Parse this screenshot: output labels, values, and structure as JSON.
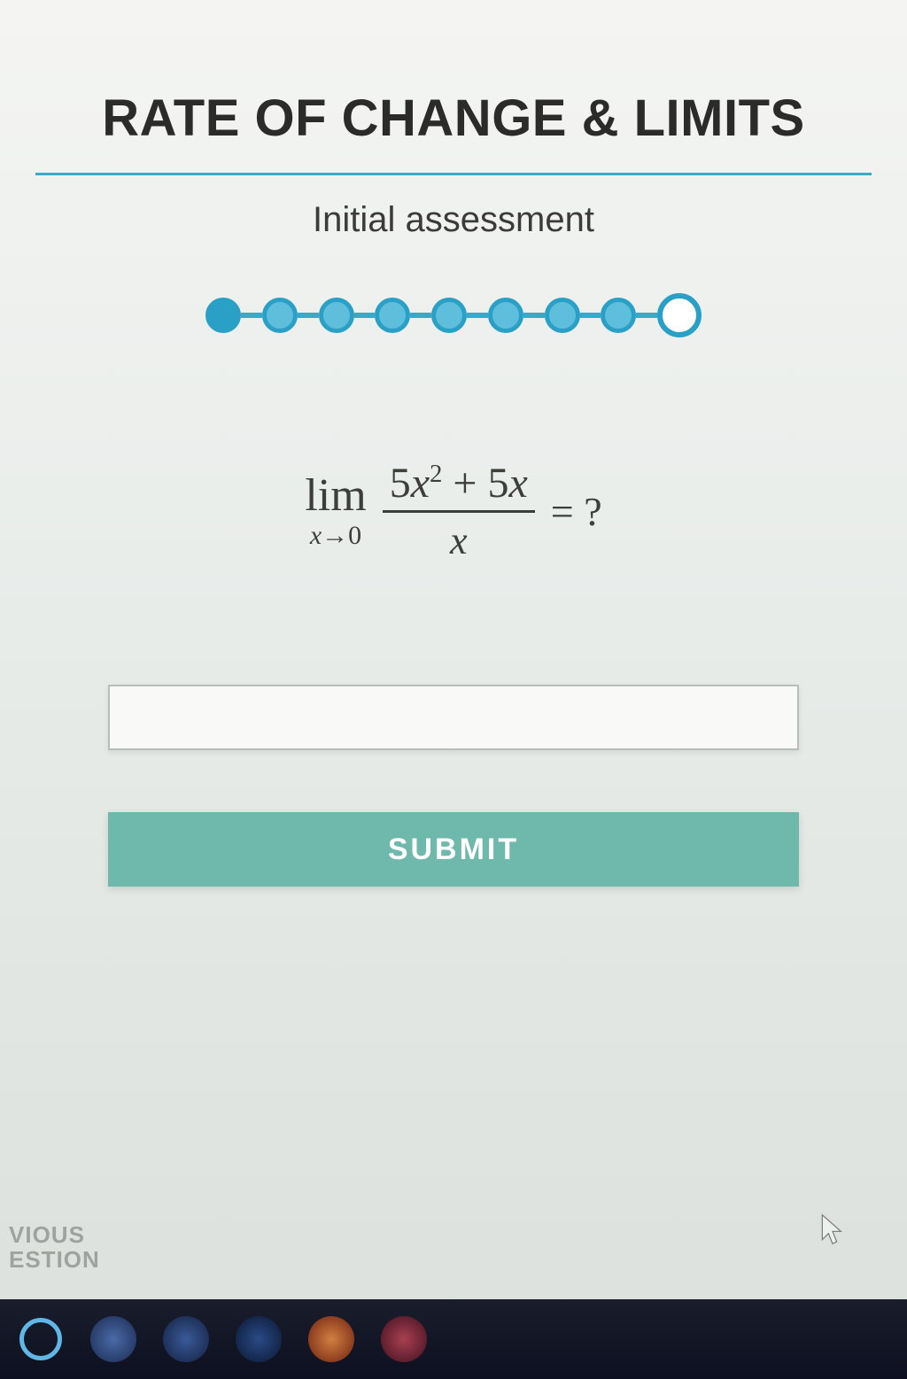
{
  "page": {
    "title": "RATE OF CHANGE & LIMITS",
    "subtitle": "Initial assessment",
    "title_color": "#2b2c2a",
    "divider_color": "#3aa9c9",
    "background_gradient": [
      "#f4f5f3",
      "#e9edea",
      "#dbe0dc"
    ]
  },
  "progress": {
    "total_steps": 9,
    "current_step": 9,
    "dot_border_color": "#2aa0c7",
    "dot_fill_color": "#5fbedb",
    "bar_color": "#3aa9c9"
  },
  "question": {
    "lim_label": "lim",
    "lim_sub": "x→0",
    "numerator": "5x² + 5x",
    "denominator": "x",
    "equals": "= ?",
    "text_color": "#3d3e3c"
  },
  "answer": {
    "value": "",
    "placeholder": ""
  },
  "submit": {
    "label": "SUBMIT",
    "bg_color": "#6eb8ac",
    "text_color": "#ffffff"
  },
  "nav": {
    "prev_line1": "VIOUS",
    "prev_line2": "ESTION"
  },
  "taskbar": {
    "bg_gradient": [
      "#1a1d2b",
      "#0d1020"
    ]
  }
}
